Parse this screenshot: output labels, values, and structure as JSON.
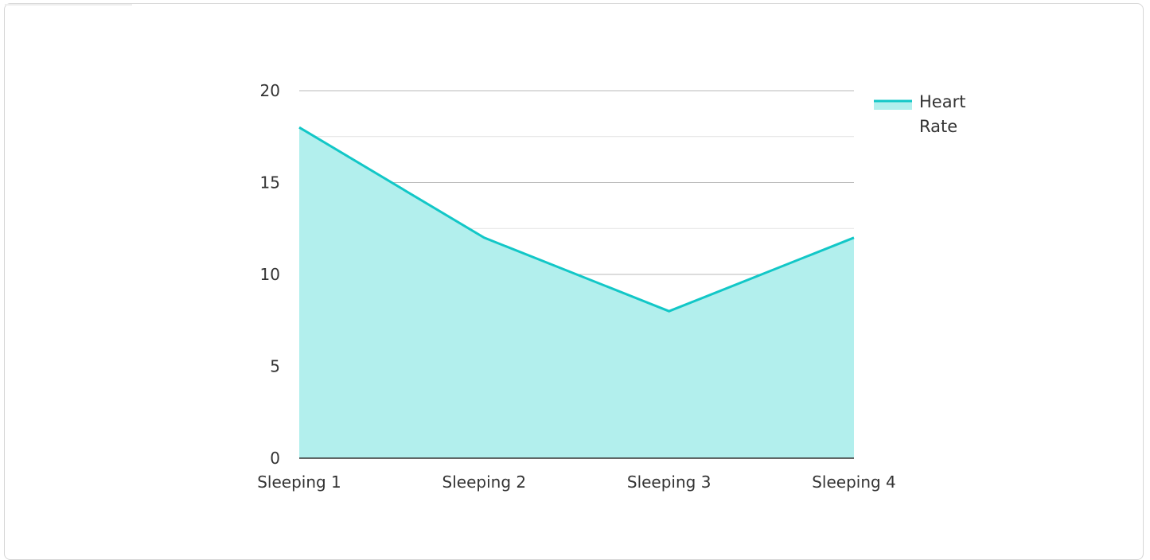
{
  "colors": {
    "line": "#12c7c7",
    "area": "#b2efed",
    "grid_major": "#b9b9b9",
    "grid_minor": "#e3e3e3",
    "axis": "#333333",
    "text": "#333333"
  },
  "chart_data": {
    "type": "area",
    "categories": [
      "Sleeping 1",
      "Sleeping 2",
      "Sleeping 3",
      "Sleeping 4"
    ],
    "series": [
      {
        "name": "Heart Rate",
        "values": [
          18,
          12,
          8,
          12
        ]
      }
    ],
    "ylim": [
      0,
      20
    ],
    "yticks": [
      "0",
      "5",
      "10",
      "15",
      "20"
    ],
    "grid": true,
    "legend": {
      "position": "top-right",
      "label_lines": [
        "Heart",
        "Rate"
      ]
    }
  }
}
